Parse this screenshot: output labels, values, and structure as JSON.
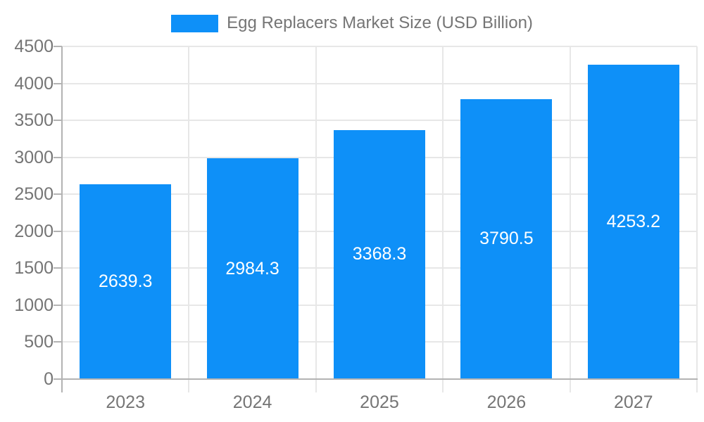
{
  "chart_data": {
    "type": "bar",
    "series_name": "Egg Replacers Market Size (USD Billion)",
    "legend_position": "top",
    "categories": [
      "2023",
      "2024",
      "2025",
      "2026",
      "2027"
    ],
    "values": [
      2639.3,
      2984.3,
      3368.3,
      3790.5,
      4253.2
    ],
    "data_labels": [
      "2639.3",
      "2984.3",
      "3368.3",
      "3790.5",
      "4253.2"
    ],
    "xlabel": "",
    "ylabel": "",
    "ylim": [
      0,
      4500
    ],
    "ytick_step": 500,
    "ytick_labels": [
      "0",
      "500",
      "1000",
      "1500",
      "2000",
      "2500",
      "3000",
      "3500",
      "4000",
      "4500"
    ],
    "grid": true,
    "colors": {
      "bar": "#0e90f8",
      "grid": "#e7e7e7",
      "axis": "#b3b3b3",
      "tick_text": "#757575",
      "legend_text": "#757575",
      "data_label": "#ffffff",
      "background": "#ffffff"
    }
  }
}
